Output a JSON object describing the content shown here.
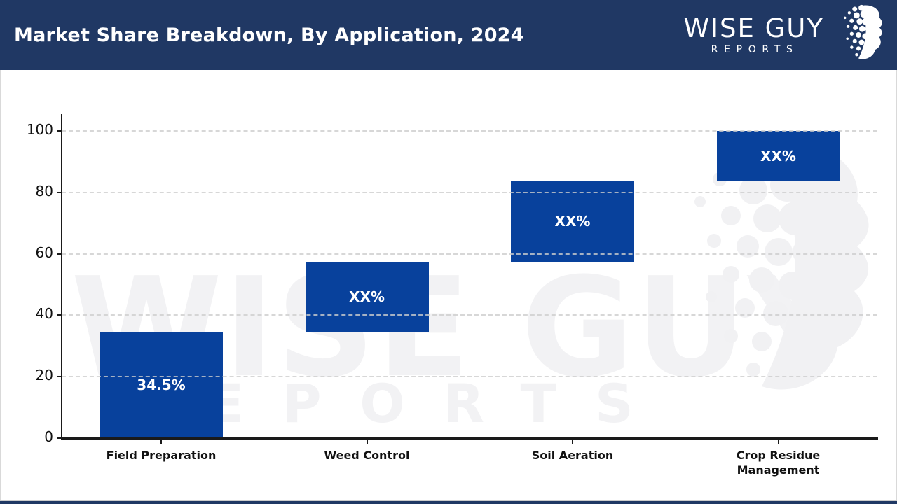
{
  "header": {
    "title": "Market Share Breakdown, By Application, 2024",
    "logo": {
      "brand": "WISE GUY",
      "sub": "REPORTS"
    }
  },
  "watermark": {
    "brand": "WISE GUY",
    "sub": "REPORTS"
  },
  "chart_data": {
    "type": "bar",
    "variant": "waterfall",
    "title": "Market Share Breakdown, By Application, 2024",
    "categories": [
      "Field Preparation",
      "Weed Control",
      "Soil Aeration",
      "Crop Residue Management"
    ],
    "segments": [
      {
        "category": "Field Preparation",
        "start": 0,
        "end": 34.5,
        "label": "34.5%"
      },
      {
        "category": "Weed Control",
        "start": 34.5,
        "end": 57.5,
        "label": "XX%"
      },
      {
        "category": "Soil Aeration",
        "start": 57.5,
        "end": 83.5,
        "label": "XX%"
      },
      {
        "category": "Crop Residue Management",
        "start": 83.5,
        "end": 100,
        "label": "XX%"
      }
    ],
    "xlabel": "",
    "ylabel": "",
    "ylim": [
      0,
      100
    ],
    "yticks": [
      0,
      20,
      40,
      60,
      80,
      100
    ],
    "grid": {
      "axis": "y",
      "style": "dashed"
    },
    "legend": "none"
  },
  "colors": {
    "header_bg": "#203864",
    "bar": "#08419c",
    "grid": "#d9d9d9",
    "axis": "#1a1a1a",
    "watermark": "#f2f2f4",
    "value_label": "#ffffff",
    "bottom_bar": "#203864"
  }
}
